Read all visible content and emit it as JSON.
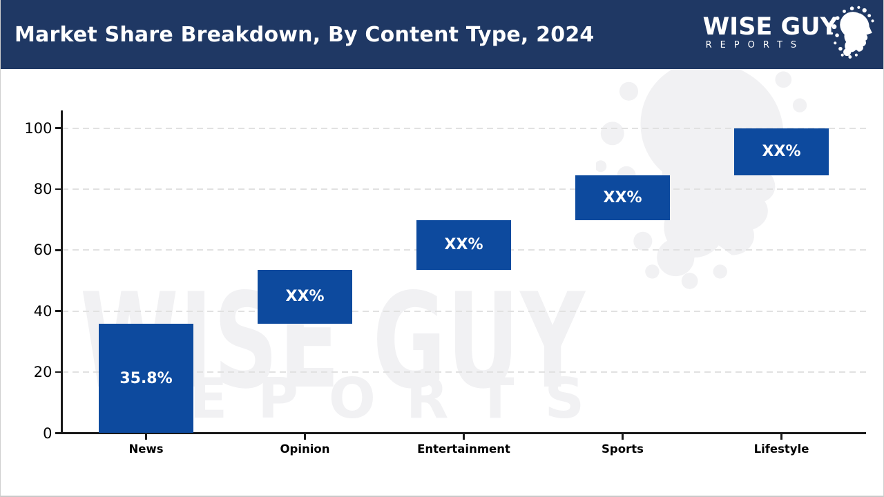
{
  "header": {
    "title": "Market Share Breakdown, By Content Type, 2024",
    "logo": {
      "brand": "WISE GUY",
      "sub": "REPORTS",
      "icon": "dotted-face-profile-icon"
    }
  },
  "watermark": {
    "brand": "WISE GUY",
    "sub": "REPORTS",
    "icon": "dotted-face-profile-icon"
  },
  "colors": {
    "header_bg": "#1f3864",
    "header_text": "#ffffff",
    "bar": "#0d4a9e",
    "bar_label": "#ffffff",
    "gridline": "#e1e1e1",
    "axis": "#1a1a1a",
    "watermark": "#f1f1f3"
  },
  "chart_data": {
    "type": "bar",
    "subtype": "waterfall",
    "title": "Market Share Breakdown, By Content Type, 2024",
    "categories": [
      "News",
      "Opinion",
      "Entertainment",
      "Sports",
      "Lifestyle"
    ],
    "series": [
      {
        "name": "Market Share",
        "starts": [
          0,
          35.8,
          53.6,
          69.9,
          84.5
        ],
        "ends": [
          35.8,
          53.6,
          69.9,
          84.5,
          100
        ],
        "values": [
          35.8,
          17.8,
          16.3,
          14.6,
          15.5
        ]
      }
    ],
    "bar_labels": [
      "35.8%",
      "XX%",
      "XX%",
      "XX%",
      "XX%"
    ],
    "xlabel": "",
    "ylabel": "",
    "ylim": [
      0,
      100
    ],
    "yticks": [
      0,
      20,
      40,
      60,
      80,
      100
    ],
    "grid": "horizontal-dashed",
    "legend": "none"
  }
}
